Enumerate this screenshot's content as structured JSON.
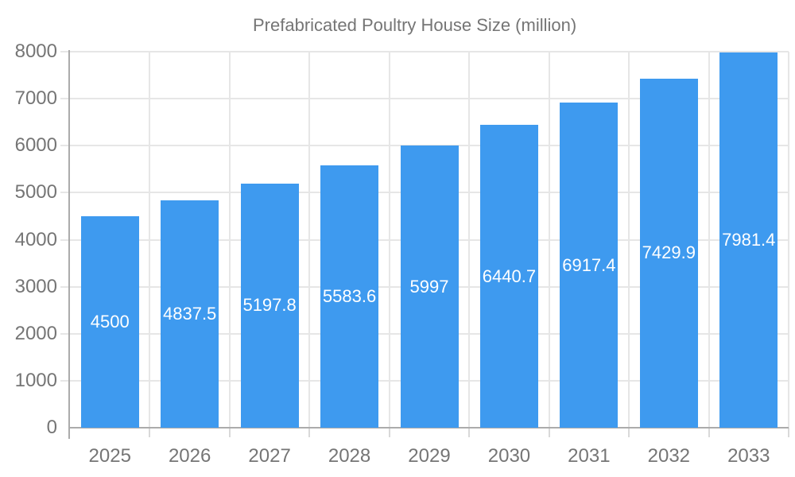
{
  "colors": {
    "bar": "#3e9aef",
    "grid": "#e6e6e6",
    "axis_line": "#ababab",
    "axis_text": "#757575",
    "bar_label_text": "#ffffff",
    "background": "#ffffff"
  },
  "legend": {
    "label": "Prefabricated Poultry House Size (million)"
  },
  "chart_data": {
    "type": "bar",
    "title": "Prefabricated Poultry House Size (million)",
    "categories": [
      "2025",
      "2026",
      "2027",
      "2028",
      "2029",
      "2030",
      "2031",
      "2032",
      "2033"
    ],
    "series": [
      {
        "name": "Prefabricated Poultry House Size (million)",
        "values": [
          4500,
          4837.5,
          5197.8,
          5583.6,
          5997,
          6440.7,
          6917.4,
          7429.9,
          7981.4
        ]
      }
    ],
    "bar_value_labels": [
      "4500",
      "4837.5",
      "5197.8",
      "5583.6",
      "5997",
      "6440.7",
      "6917.4",
      "7429.9",
      "7981.4"
    ],
    "xlabel": "",
    "ylabel": "",
    "ylim": [
      0,
      8000
    ],
    "yticks": [
      0,
      1000,
      2000,
      3000,
      4000,
      5000,
      6000,
      7000,
      8000
    ],
    "grid": "horizontal and vertical, light gray",
    "legend_position": "top"
  }
}
